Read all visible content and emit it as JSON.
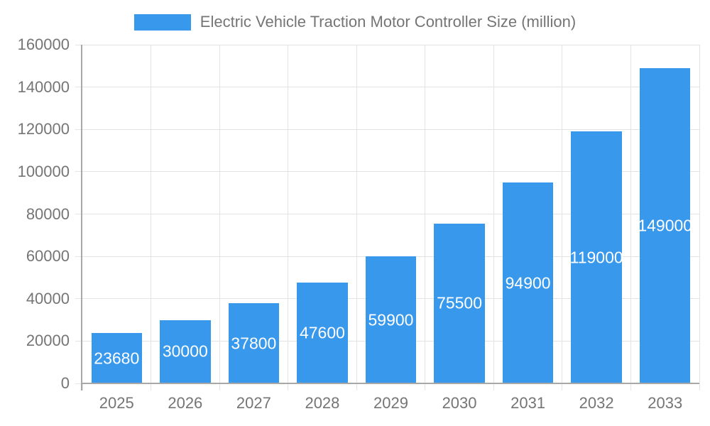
{
  "chart_data": {
    "type": "bar",
    "title": "Electric Vehicle Traction Motor Controller Size (million)",
    "categories": [
      "2025",
      "2026",
      "2027",
      "2028",
      "2029",
      "2030",
      "2031",
      "2032",
      "2033"
    ],
    "values": [
      23680,
      30000,
      37800,
      47600,
      59900,
      75500,
      94900,
      119000,
      149000
    ],
    "xlabel": "",
    "ylabel": "",
    "ylim": [
      0,
      160000
    ],
    "yticks": [
      0,
      20000,
      40000,
      60000,
      80000,
      100000,
      120000,
      140000,
      160000
    ],
    "grid": true,
    "legend_position": "top-center",
    "value_labels_visible": true
  },
  "colors": {
    "bar": "#3898EC",
    "grid": "#E3E3E3",
    "axis": "#A8A8A8",
    "axis_text": "#757575",
    "value_label_text": "#FFFFFF",
    "legend_text": "#757575",
    "background": "#FFFFFF"
  }
}
